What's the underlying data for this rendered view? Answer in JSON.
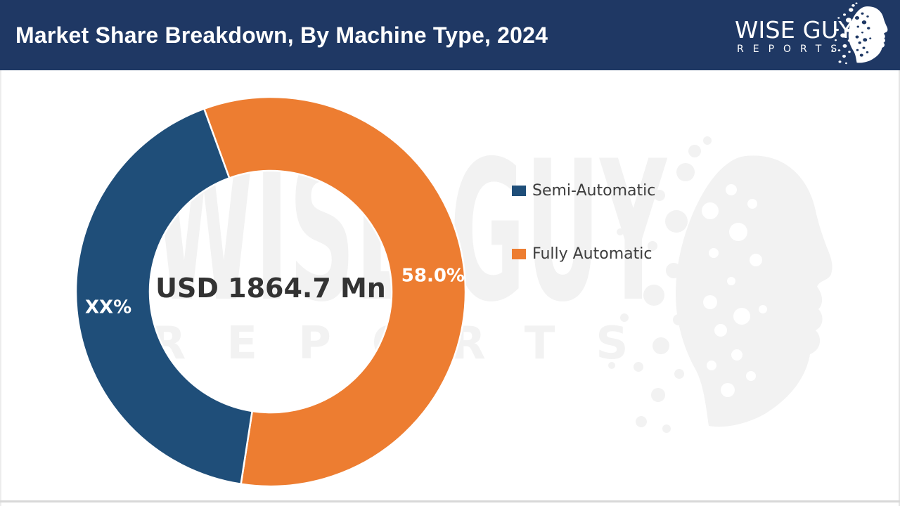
{
  "header": {
    "title": "Market Share Breakdown, By Machine Type, 2024",
    "background": "#1F3864",
    "logo": {
      "line1": "WISE GUY",
      "line2": "REPORTS"
    }
  },
  "watermark": {
    "line1": "WISE GUY",
    "line2": "REPORTS"
  },
  "chart_data": {
    "type": "pie",
    "subtype": "donut",
    "title": "Market Share Breakdown, By Machine Type, 2024",
    "center_label": "USD 1864.7 Mn",
    "start_angle_deg": 110,
    "direction": "clockwise",
    "series": [
      {
        "name": "Fully Automatic",
        "value": 58.0,
        "label": "58.0%",
        "color": "#ED7D31"
      },
      {
        "name": "Semi-Automatic",
        "value": 42.0,
        "label": "XX%",
        "color": "#1F4E79"
      }
    ],
    "legend": {
      "position": "right",
      "entries": [
        {
          "label": "Semi-Automatic",
          "color": "#1F4E79"
        },
        {
          "label": "Fully Automatic",
          "color": "#ED7D31"
        }
      ]
    }
  }
}
